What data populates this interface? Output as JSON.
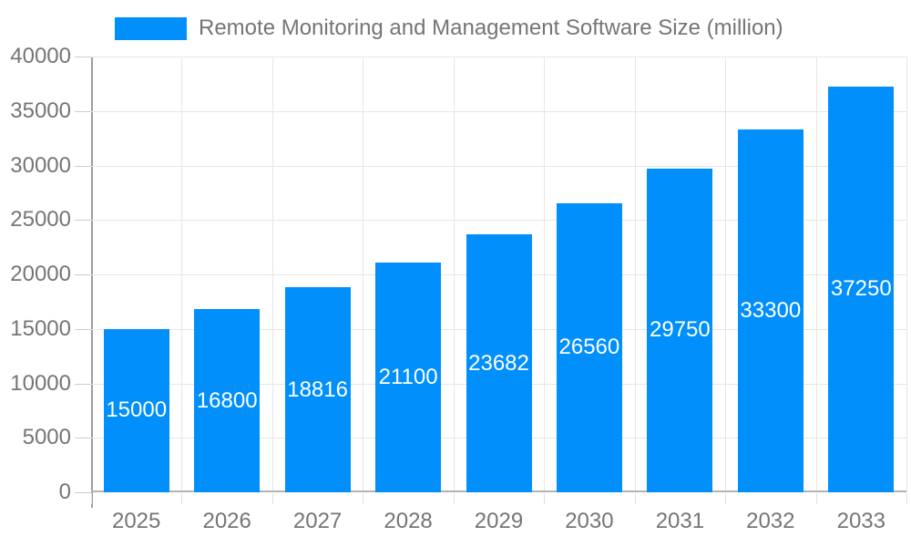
{
  "legend": {
    "label": "Remote Monitoring and Management Software Size (million)",
    "swatch_color": "#008FFB"
  },
  "chart_data": {
    "type": "bar",
    "title": "Remote Monitoring and Management Software Size (million)",
    "categories": [
      "2025",
      "2026",
      "2027",
      "2028",
      "2029",
      "2030",
      "2031",
      "2032",
      "2033"
    ],
    "values": [
      15000,
      16800,
      18816,
      21100,
      23682,
      26560,
      29750,
      33300,
      37250
    ],
    "series_color": "#008FFB",
    "value_label_color": "#ffffff",
    "axis_text_color": "#757575",
    "xlabel": "",
    "ylabel": "",
    "ylim": [
      0,
      40000
    ],
    "ytick_step": 5000,
    "yticks": [
      0,
      5000,
      10000,
      15000,
      20000,
      25000,
      30000,
      35000,
      40000
    ],
    "grid": true,
    "legend_position": "top",
    "value_label_position": "inside-center"
  }
}
